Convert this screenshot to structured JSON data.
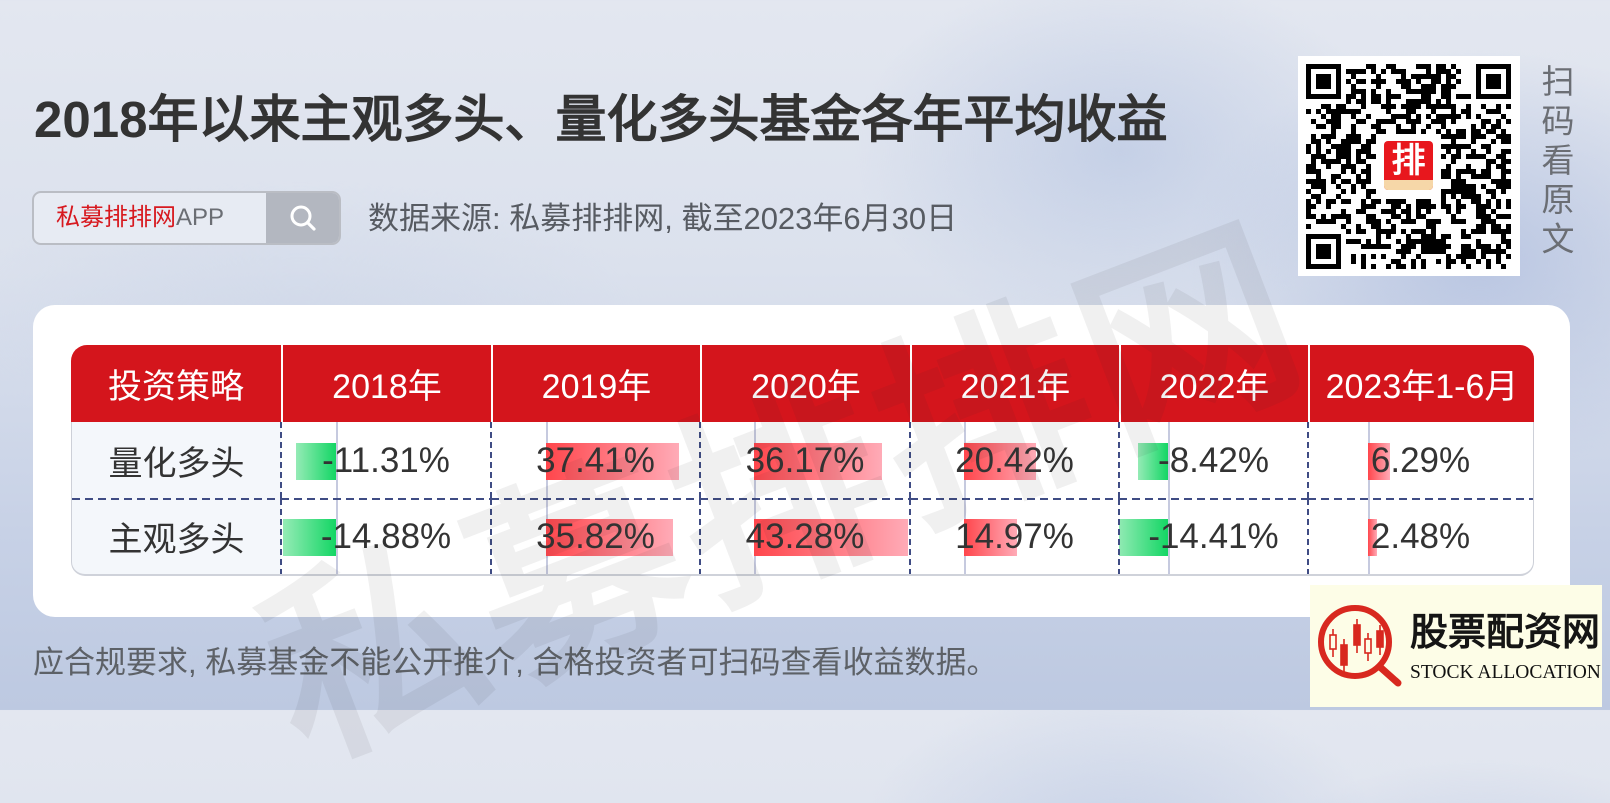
{
  "title": "2018年以来主观多头、量化多头基金各年平均收益",
  "search": {
    "brand": "私募排排网",
    "suffix": "APP",
    "button_icon": "search-icon"
  },
  "source": "数据来源: 私募排排网, 截至2023年6月30日",
  "qr": {
    "logo_char": "排",
    "caption": "扫码看原文"
  },
  "table": {
    "header": [
      "投资策略",
      "2018年",
      "2019年",
      "2020年",
      "2021年",
      "2022年",
      "2023年1-6月"
    ],
    "rows": [
      {
        "label": "量化多头",
        "values": [
          "-11.31%",
          "37.41%",
          "36.17%",
          "20.42%",
          "-8.42%",
          "6.29%"
        ]
      },
      {
        "label": "主观多头",
        "values": [
          "-14.88%",
          "35.82%",
          "43.28%",
          "14.97%",
          "-14.41%",
          "2.48%"
        ]
      }
    ]
  },
  "footer": "应合规要求, 私募基金不能公开推介, 合格投资者可扫码查看收益数据。",
  "watermark": "私募排排网",
  "logo": {
    "cn": "股票配资网",
    "en": "STOCK ALLOCATION"
  },
  "colors": {
    "header-bg": "#d4151c",
    "brand-red": "#d7191f",
    "pos-start": "#ff464c",
    "pos-end": "#ffabb7",
    "neg-start": "#95ebb6",
    "neg-end": "#13d664",
    "dash": "#3f4c84",
    "axis": "#c6cadf"
  },
  "chart_data": {
    "type": "table",
    "title": "2018年以来主观多头、量化多头基金各年平均收益",
    "subtitle": "数据来源: 私募排排网, 截至2023年6月30日",
    "row_header": "投资策略",
    "categories": [
      "2018年",
      "2019年",
      "2020年",
      "2021年",
      "2022年",
      "2023年1-6月"
    ],
    "unit": "%",
    "series": [
      {
        "name": "量化多头",
        "values": [
          -11.31,
          37.41,
          36.17,
          20.42,
          -8.42,
          6.29
        ]
      },
      {
        "name": "主观多头",
        "values": [
          -14.88,
          35.82,
          43.28,
          14.97,
          -14.41,
          2.48
        ]
      }
    ],
    "encoding": "in-cell data bars: positive red (right of axis), negative green (left of axis)"
  }
}
